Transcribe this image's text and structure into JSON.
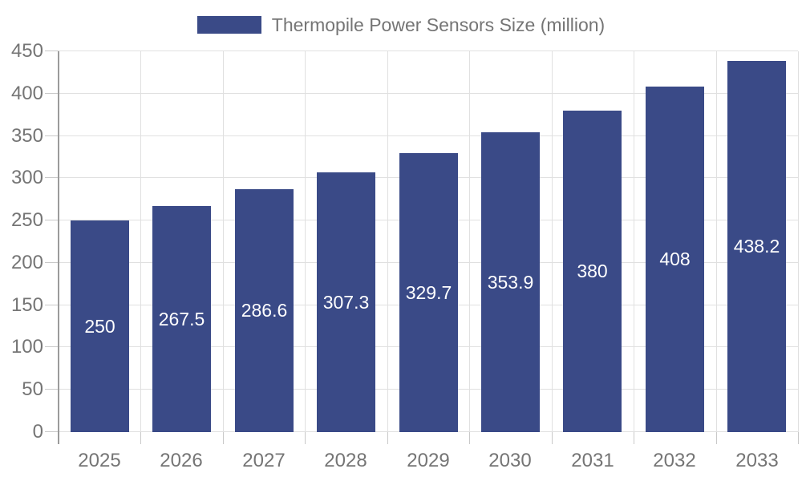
{
  "chart_data": {
    "type": "bar",
    "title": "Thermopile Power Sensors Size (million)",
    "categories": [
      "2025",
      "2026",
      "2027",
      "2028",
      "2029",
      "2030",
      "2031",
      "2032",
      "2033"
    ],
    "series": [
      {
        "name": "Thermopile Power Sensors Size (million)",
        "values": [
          250,
          267.5,
          286.6,
          307.3,
          329.7,
          353.9,
          380,
          408,
          438.2
        ]
      }
    ],
    "xlabel": "",
    "ylabel": "",
    "ylim": [
      0,
      450
    ],
    "ytick_step": 50,
    "ytick_labels": [
      "0",
      "50",
      "100",
      "150",
      "200",
      "250",
      "300",
      "350",
      "400",
      "450"
    ],
    "grid": true,
    "legend_position": "top",
    "value_labels": "inside-center"
  },
  "colors": {
    "bar": "#3a4a87",
    "axis_text": "#757575",
    "value_text": "#ffffff",
    "gridline": "#e0e0e0",
    "tick": "#c9c9c9",
    "axis_line": "#9b9b9b",
    "background": "#ffffff"
  }
}
